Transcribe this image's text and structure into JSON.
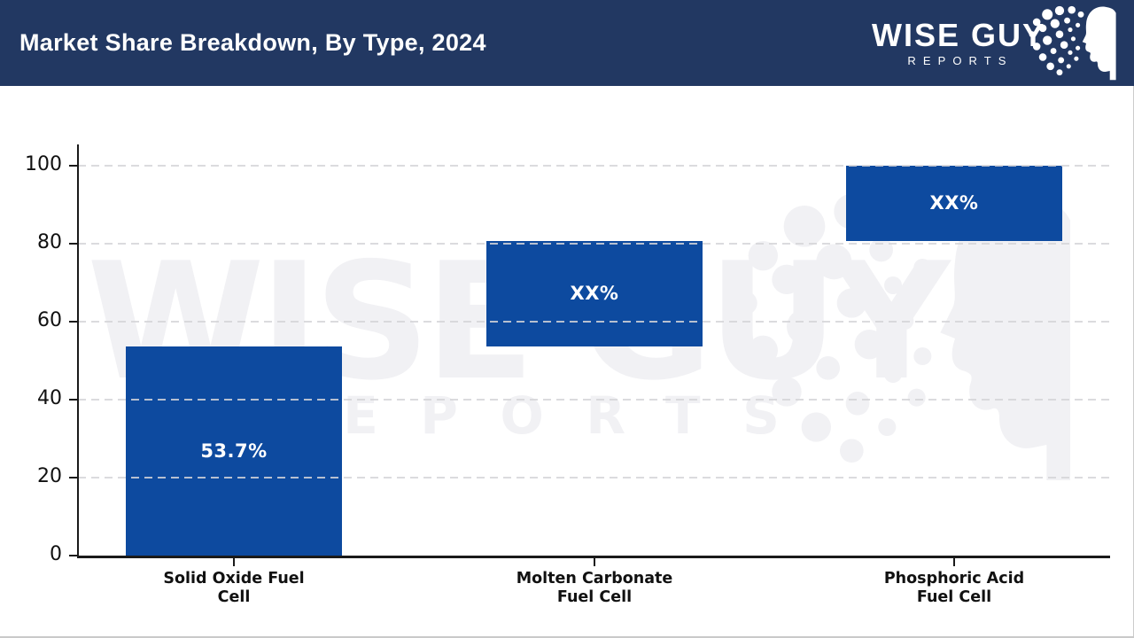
{
  "header": {
    "title": "Market Share Breakdown, By Type, 2024",
    "logo": {
      "name_line": "WISE GUY",
      "reports_line": "REPORTS"
    }
  },
  "watermark": {
    "name_line": "WISE GUY",
    "reports_line": "REPORTS"
  },
  "chart_data": {
    "type": "bar",
    "subtype": "waterfall",
    "title": "Market Share Breakdown, By Type, 2024",
    "categories": [
      "Solid Oxide Fuel Cell",
      "Molten Carbonate Fuel Cell",
      "Phosphoric Acid Fuel Cell"
    ],
    "category_label_lines": [
      [
        "Solid Oxide Fuel",
        "Cell"
      ],
      [
        "Molten Carbonate",
        "Fuel Cell"
      ],
      [
        "Phosphoric Acid",
        "Fuel Cell"
      ]
    ],
    "segments": [
      {
        "category": "Solid Oxide Fuel Cell",
        "start": 0,
        "end": 53.7,
        "label": "53.7%"
      },
      {
        "category": "Molten Carbonate Fuel Cell",
        "start": 53.7,
        "end": 80.7,
        "label": "XX%"
      },
      {
        "category": "Phosphoric Acid Fuel Cell",
        "start": 80.7,
        "end": 100,
        "label": "XX%"
      }
    ],
    "y_ticks": [
      0,
      20,
      40,
      60,
      80,
      100
    ],
    "ylim": [
      0,
      105.5
    ],
    "xlabel": "",
    "ylabel": "",
    "grid": "horizontal-dashed-over-bars",
    "legend": "none",
    "bar_color": "#0d4a9f",
    "bar_label_color": "#ffffff"
  },
  "colors": {
    "header_bg": "#223862",
    "bar": "#0d4a9f",
    "grid": "#d8d8d8",
    "axis": "#1a1a1a",
    "watermark": "#f1f1f4",
    "page_bg": "#ffffff",
    "border": "#c9c9c9"
  }
}
